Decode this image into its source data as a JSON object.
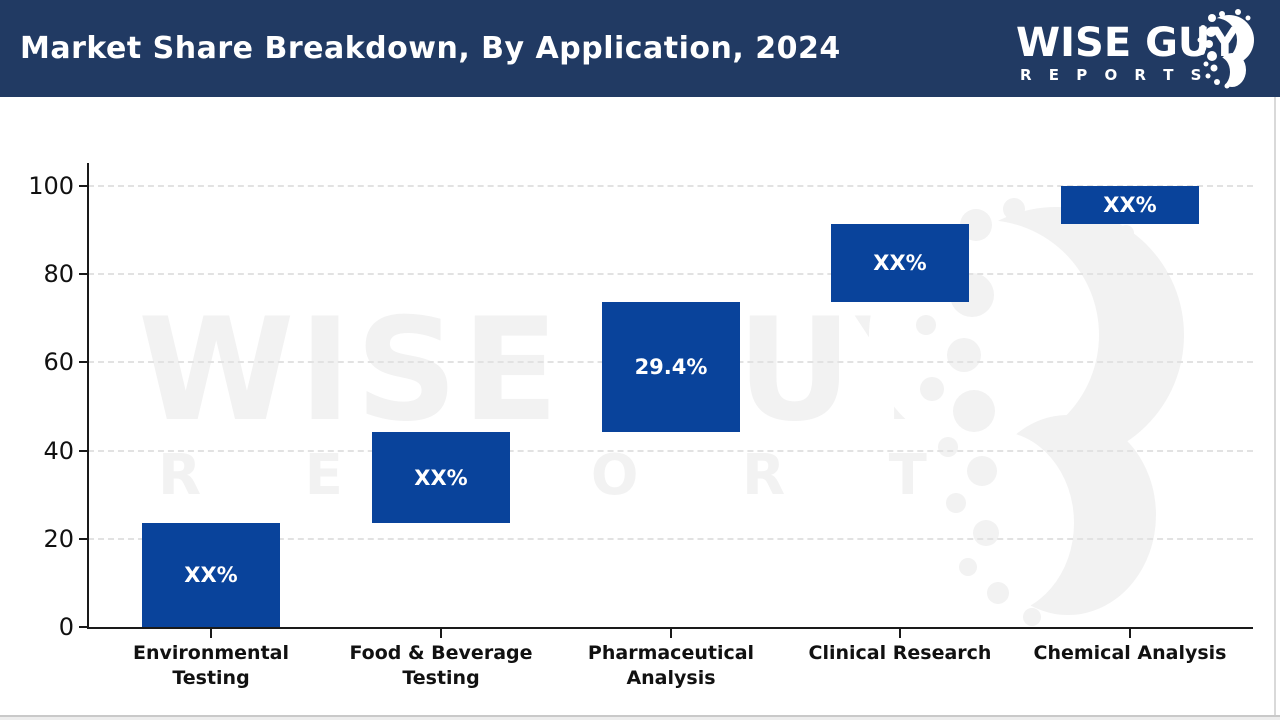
{
  "header": {
    "title": "Market Share Breakdown, By Application, 2024"
  },
  "logo": {
    "line1": "WISE GUY",
    "line2": "R E P O R T S"
  },
  "watermark": {
    "line1": "WISE GUY",
    "line2": "R E P O R T S"
  },
  "colors": {
    "header_bg": "#213a63",
    "bar_blue": "#09439b",
    "axis": "#1a1a1a",
    "gridline": "#e2e2e2",
    "watermark": "#f2f2f2"
  },
  "chart_data": {
    "type": "bar",
    "subtype": "waterfall-floating-bars",
    "title": "Market Share Breakdown, By Application, 2024",
    "xlabel": "",
    "ylabel": "",
    "ylim": [
      0,
      100
    ],
    "yticks": [
      0,
      20,
      40,
      60,
      80,
      100
    ],
    "ytick_labels": [
      "0",
      "20",
      "40",
      "60",
      "80",
      "100"
    ],
    "grid": "horizontal dashed",
    "legend": "none",
    "categories": [
      "Environmental Testing",
      "Food & Beverage Testing",
      "Pharmaceutical Analysis",
      "Clinical Research",
      "Chemical Analysis"
    ],
    "segments": [
      {
        "category": "Environmental Testing",
        "cat_lines": [
          "Environmental",
          "Testing"
        ],
        "start": 0,
        "end": 23.6,
        "value": 23.6,
        "value_label": "XX%"
      },
      {
        "category": "Food & Beverage Testing",
        "cat_lines": [
          "Food & Beverage",
          "Testing"
        ],
        "start": 23.6,
        "end": 44.2,
        "value": 20.6,
        "value_label": "XX%"
      },
      {
        "category": "Pharmaceutical Analysis",
        "cat_lines": [
          "Pharmaceutical",
          "Analysis"
        ],
        "start": 44.2,
        "end": 73.6,
        "value": 29.4,
        "value_label": "29.4%"
      },
      {
        "category": "Clinical Research",
        "cat_lines": [
          "Clinical Research"
        ],
        "start": 73.6,
        "end": 91.3,
        "value": 17.7,
        "value_label": "XX%"
      },
      {
        "category": "Chemical Analysis",
        "cat_lines": [
          "Chemical Analysis"
        ],
        "start": 91.3,
        "end": 100,
        "value": 8.7,
        "value_label": "XX%"
      }
    ]
  }
}
